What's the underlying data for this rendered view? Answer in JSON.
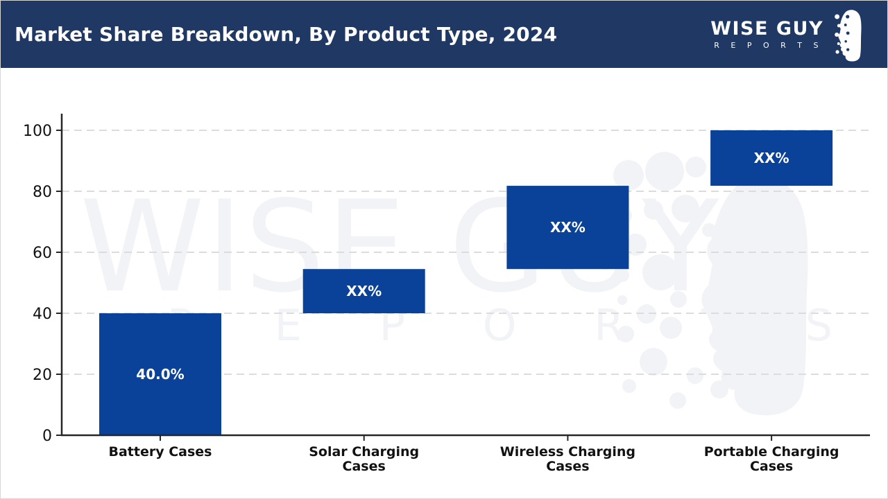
{
  "header": {
    "title": "Market Share Breakdown, By Product Type, 2024",
    "bg_color": "#1f3864",
    "logo": {
      "line1": "WISE GUY",
      "line2": "R E P O R T S"
    }
  },
  "watermark": {
    "line1": "WISE GUY",
    "line2": "R E P O R T S",
    "color": "#f2f3f6"
  },
  "chart_data": {
    "type": "bar",
    "subtype": "waterfall",
    "title": "Market Share Breakdown, By Product Type, 2024",
    "categories": [
      [
        "Battery Cases"
      ],
      [
        "Solar Charging",
        "Cases"
      ],
      [
        "Wireless Charging",
        "Cases"
      ],
      [
        "Portable Charging",
        "Cases"
      ]
    ],
    "bars": [
      {
        "category": "Battery Cases",
        "start": 0,
        "end": 40,
        "label": "40.0%"
      },
      {
        "category": "Solar Charging Cases",
        "start": 40,
        "end": 54.5,
        "label": "XX%"
      },
      {
        "category": "Wireless Charging Cases",
        "start": 54.5,
        "end": 81.8,
        "label": "XX%"
      },
      {
        "category": "Portable Charging Cases",
        "start": 81.8,
        "end": 100,
        "label": "XX%"
      }
    ],
    "ylim": [
      0,
      100
    ],
    "yticks": [
      0,
      20,
      40,
      60,
      80,
      100
    ],
    "grid": "horizontal-dashed",
    "legend": "none",
    "colors": {
      "bar": "#0a4299",
      "bar_label": "#ffffff",
      "grid": "#dcdcdc",
      "axis": "#262626",
      "tick_label": "#111111"
    }
  }
}
